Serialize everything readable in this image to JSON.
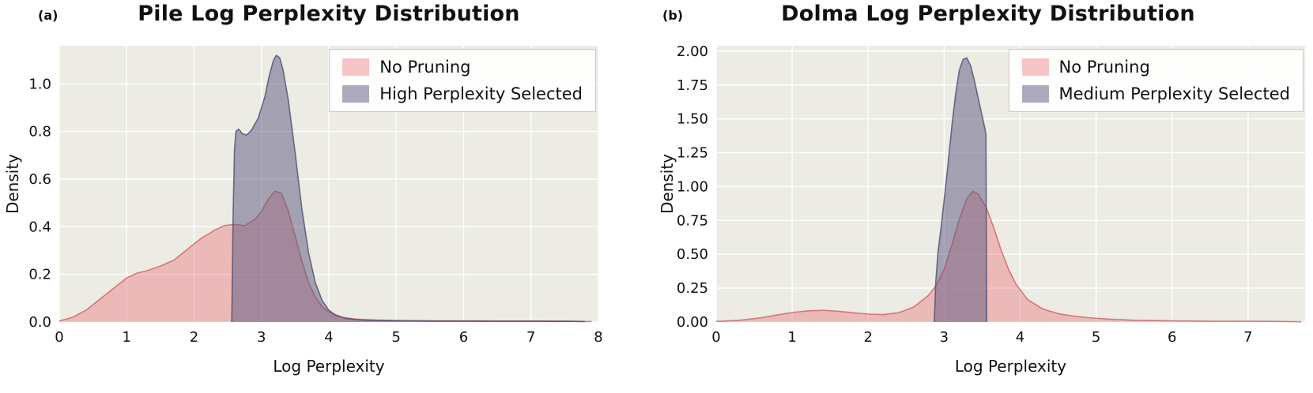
{
  "chart_data": [
    {
      "type": "area",
      "panel_label": "(a)",
      "title": "Pile Log Perplexity Distribution",
      "xlabel": "Log Perplexity",
      "ylabel": "Density",
      "xlim": [
        0,
        8
      ],
      "ylim": [
        0,
        1.16
      ],
      "xticks": [
        0,
        1,
        2,
        3,
        4,
        5,
        6,
        7,
        8
      ],
      "xtick_labels": [
        "0",
        "1",
        "2",
        "3",
        "4",
        "5",
        "6",
        "7",
        "8"
      ],
      "ytick_values": [
        0.0,
        0.2,
        0.4,
        0.6,
        0.8,
        1.0
      ],
      "ytick_labels": [
        "0.0",
        "0.2",
        "0.4",
        "0.6",
        "0.8",
        "1.0"
      ],
      "grid": true,
      "legend_loc": "upper right",
      "plot_bg": "#ECEBE4",
      "grid_color": "#ffffff",
      "series": [
        {
          "name": "No Pruning",
          "fill": "rgba(235,110,115,0.4)",
          "stroke": "rgba(205,90,95,0.75)",
          "points": [
            [
              0,
              0.004
            ],
            [
              0.2,
              0.02
            ],
            [
              0.4,
              0.05
            ],
            [
              0.6,
              0.095
            ],
            [
              0.8,
              0.14
            ],
            [
              1.0,
              0.185
            ],
            [
              1.15,
              0.205
            ],
            [
              1.3,
              0.215
            ],
            [
              1.5,
              0.235
            ],
            [
              1.7,
              0.26
            ],
            [
              1.9,
              0.305
            ],
            [
              2.1,
              0.35
            ],
            [
              2.3,
              0.385
            ],
            [
              2.45,
              0.405
            ],
            [
              2.6,
              0.41
            ],
            [
              2.75,
              0.405
            ],
            [
              2.9,
              0.43
            ],
            [
              3.0,
              0.465
            ],
            [
              3.1,
              0.515
            ],
            [
              3.2,
              0.55
            ],
            [
              3.3,
              0.54
            ],
            [
              3.4,
              0.465
            ],
            [
              3.5,
              0.36
            ],
            [
              3.6,
              0.255
            ],
            [
              3.7,
              0.165
            ],
            [
              3.8,
              0.105
            ],
            [
              3.9,
              0.065
            ],
            [
              4.0,
              0.042
            ],
            [
              4.2,
              0.02
            ],
            [
              4.4,
              0.012
            ],
            [
              4.7,
              0.008
            ],
            [
              5.0,
              0.006
            ],
            [
              5.5,
              0.005
            ],
            [
              6.0,
              0.005
            ],
            [
              6.5,
              0.004
            ],
            [
              7.0,
              0.004
            ],
            [
              7.5,
              0.003
            ],
            [
              7.9,
              0.002
            ]
          ]
        },
        {
          "name": "High Perplexity Selected",
          "fill": "rgba(90,88,125,0.5)",
          "stroke": "rgba(80,78,112,0.8)",
          "points": [
            [
              2.56,
              0
            ],
            [
              2.58,
              0.45
            ],
            [
              2.6,
              0.72
            ],
            [
              2.62,
              0.8
            ],
            [
              2.66,
              0.81
            ],
            [
              2.72,
              0.79
            ],
            [
              2.78,
              0.785
            ],
            [
              2.85,
              0.805
            ],
            [
              2.95,
              0.855
            ],
            [
              3.05,
              0.945
            ],
            [
              3.12,
              1.04
            ],
            [
              3.18,
              1.1
            ],
            [
              3.22,
              1.12
            ],
            [
              3.27,
              1.11
            ],
            [
              3.32,
              1.06
            ],
            [
              3.4,
              0.93
            ],
            [
              3.5,
              0.71
            ],
            [
              3.6,
              0.475
            ],
            [
              3.7,
              0.29
            ],
            [
              3.8,
              0.165
            ],
            [
              3.9,
              0.09
            ],
            [
              4.0,
              0.05
            ],
            [
              4.1,
              0.028
            ],
            [
              4.25,
              0.015
            ],
            [
              4.5,
              0.008
            ],
            [
              4.8,
              0.006
            ],
            [
              5.2,
              0.005
            ],
            [
              5.6,
              0.004
            ],
            [
              6.0,
              0.004
            ],
            [
              6.5,
              0.003
            ],
            [
              7.0,
              0.003
            ],
            [
              7.5,
              0.003
            ],
            [
              7.8,
              0.002
            ]
          ]
        }
      ]
    },
    {
      "type": "area",
      "panel_label": "(b)",
      "title": "Dolma Log Perplexity Distribution",
      "xlabel": "Log Perplexity",
      "ylabel": "Density",
      "xlim": [
        0,
        7.75
      ],
      "ylim": [
        0,
        2.04
      ],
      "xticks": [
        0,
        1,
        2,
        3,
        4,
        5,
        6,
        7
      ],
      "xtick_labels": [
        "0",
        "1",
        "2",
        "3",
        "4",
        "5",
        "6",
        "7"
      ],
      "ytick_values": [
        0.0,
        0.25,
        0.5,
        0.75,
        1.0,
        1.25,
        1.5,
        1.75,
        2.0
      ],
      "ytick_labels": [
        "0.00",
        "0.25",
        "0.50",
        "0.75",
        "1.00",
        "1.25",
        "1.50",
        "1.75",
        "2.00"
      ],
      "grid": true,
      "legend_loc": "upper right",
      "plot_bg": "#ECEBE4",
      "grid_color": "#ffffff",
      "series": [
        {
          "name": "No Pruning",
          "fill": "rgba(235,110,115,0.4)",
          "stroke": "rgba(205,90,95,0.75)",
          "points": [
            [
              0,
              0.004
            ],
            [
              0.3,
              0.012
            ],
            [
              0.6,
              0.032
            ],
            [
              0.8,
              0.052
            ],
            [
              1.0,
              0.07
            ],
            [
              1.2,
              0.082
            ],
            [
              1.4,
              0.086
            ],
            [
              1.6,
              0.08
            ],
            [
              1.8,
              0.068
            ],
            [
              2.0,
              0.058
            ],
            [
              2.2,
              0.055
            ],
            [
              2.4,
              0.068
            ],
            [
              2.6,
              0.11
            ],
            [
              2.8,
              0.2
            ],
            [
              2.9,
              0.275
            ],
            [
              3.0,
              0.39
            ],
            [
              3.1,
              0.565
            ],
            [
              3.2,
              0.76
            ],
            [
              3.3,
              0.915
            ],
            [
              3.38,
              0.965
            ],
            [
              3.45,
              0.945
            ],
            [
              3.55,
              0.85
            ],
            [
              3.65,
              0.7
            ],
            [
              3.75,
              0.53
            ],
            [
              3.85,
              0.385
            ],
            [
              3.95,
              0.275
            ],
            [
              4.1,
              0.165
            ],
            [
              4.3,
              0.095
            ],
            [
              4.5,
              0.062
            ],
            [
              4.7,
              0.044
            ],
            [
              4.9,
              0.032
            ],
            [
              5.2,
              0.02
            ],
            [
              5.5,
              0.013
            ],
            [
              6.0,
              0.008
            ],
            [
              6.5,
              0.006
            ],
            [
              7.0,
              0.005
            ],
            [
              7.4,
              0.004
            ],
            [
              7.7,
              0.002
            ]
          ]
        },
        {
          "name": "Medium Perplexity Selected",
          "fill": "rgba(90,88,125,0.5)",
          "stroke": "rgba(80,78,112,0.8)",
          "points": [
            [
              2.87,
              0
            ],
            [
              2.89,
              0.3
            ],
            [
              2.92,
              0.52
            ],
            [
              2.96,
              0.7
            ],
            [
              3.0,
              0.9
            ],
            [
              3.05,
              1.16
            ],
            [
              3.1,
              1.44
            ],
            [
              3.15,
              1.68
            ],
            [
              3.2,
              1.86
            ],
            [
              3.25,
              1.94
            ],
            [
              3.3,
              1.95
            ],
            [
              3.35,
              1.89
            ],
            [
              3.4,
              1.78
            ],
            [
              3.45,
              1.65
            ],
            [
              3.5,
              1.52
            ],
            [
              3.54,
              1.42
            ],
            [
              3.55,
              1.38
            ],
            [
              3.56,
              0
            ]
          ]
        }
      ]
    }
  ]
}
